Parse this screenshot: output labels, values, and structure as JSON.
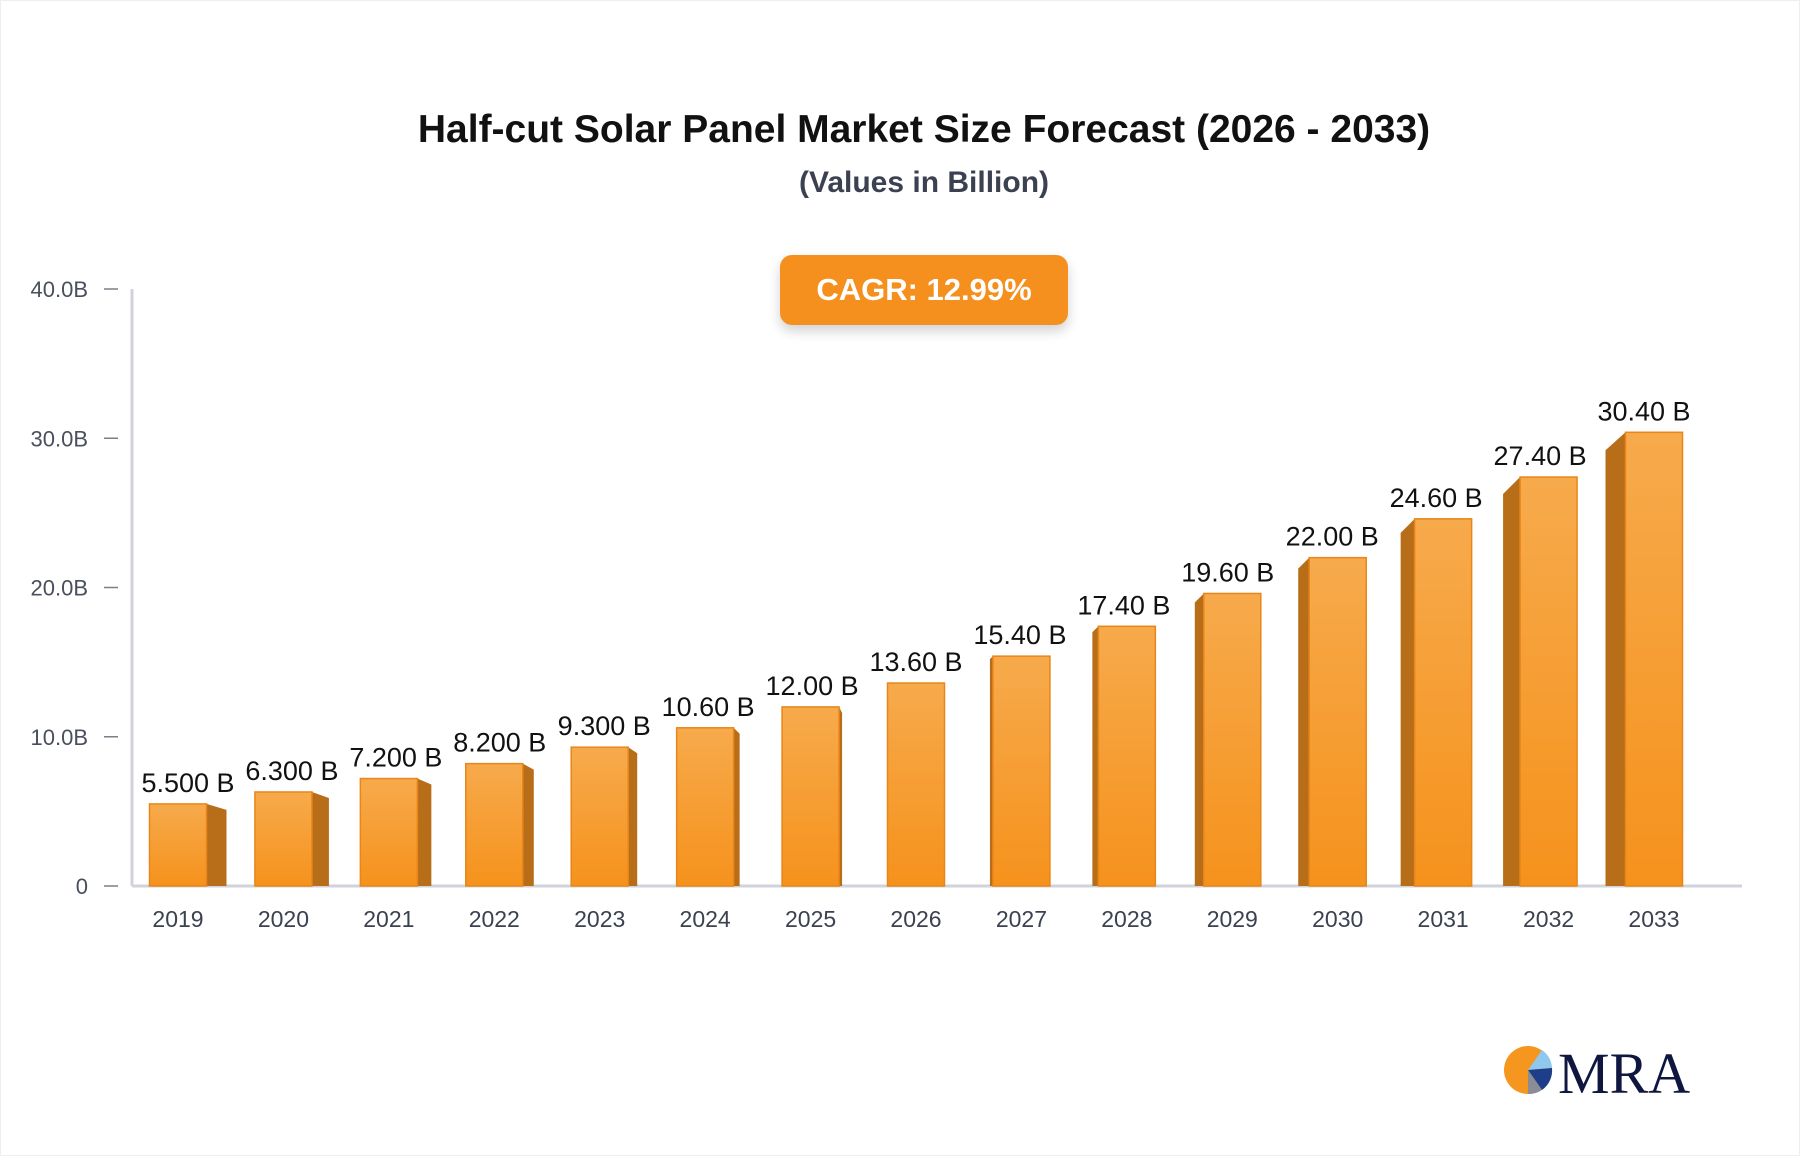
{
  "title": "Half-cut Solar Panel Market Size Forecast (2026 - 2033)",
  "subtitle": "(Values in Billion)",
  "cagr_label": "CAGR: 12.99%",
  "logo_text": "MRA",
  "colors": {
    "bar_front": "#f5961f",
    "bar_top": "#f7a94a",
    "bar_side": "#b86e18",
    "badge": "#f5901e",
    "axis": "#d0d3db"
  },
  "chart_data": {
    "type": "bar",
    "categories": [
      "2019",
      "2020",
      "2021",
      "2022",
      "2023",
      "2024",
      "2025",
      "2026",
      "2027",
      "2028",
      "2029",
      "2030",
      "2031",
      "2032",
      "2033"
    ],
    "values": [
      5.5,
      6.3,
      7.2,
      8.2,
      9.3,
      10.6,
      12.0,
      13.6,
      15.4,
      17.4,
      19.6,
      22.0,
      24.6,
      27.4,
      30.4
    ],
    "data_labels": [
      "5.500 B",
      "6.300 B",
      "7.200 B",
      "8.200 B",
      "9.300 B",
      "10.60 B",
      "12.00 B",
      "13.60 B",
      "15.40 B",
      "17.40 B",
      "19.60 B",
      "22.00 B",
      "24.60 B",
      "27.40 B",
      "30.40 B"
    ],
    "y_ticks": [
      0,
      10,
      20,
      30,
      40
    ],
    "y_tick_labels": [
      "0",
      "10.0B",
      "20.0B",
      "30.0B",
      "40.0B"
    ],
    "ylim": [
      0,
      40
    ],
    "grid": false,
    "legend": "none",
    "title": "Half-cut Solar Panel Market Size Forecast (2026 - 2033)",
    "xlabel": "",
    "ylabel": ""
  }
}
